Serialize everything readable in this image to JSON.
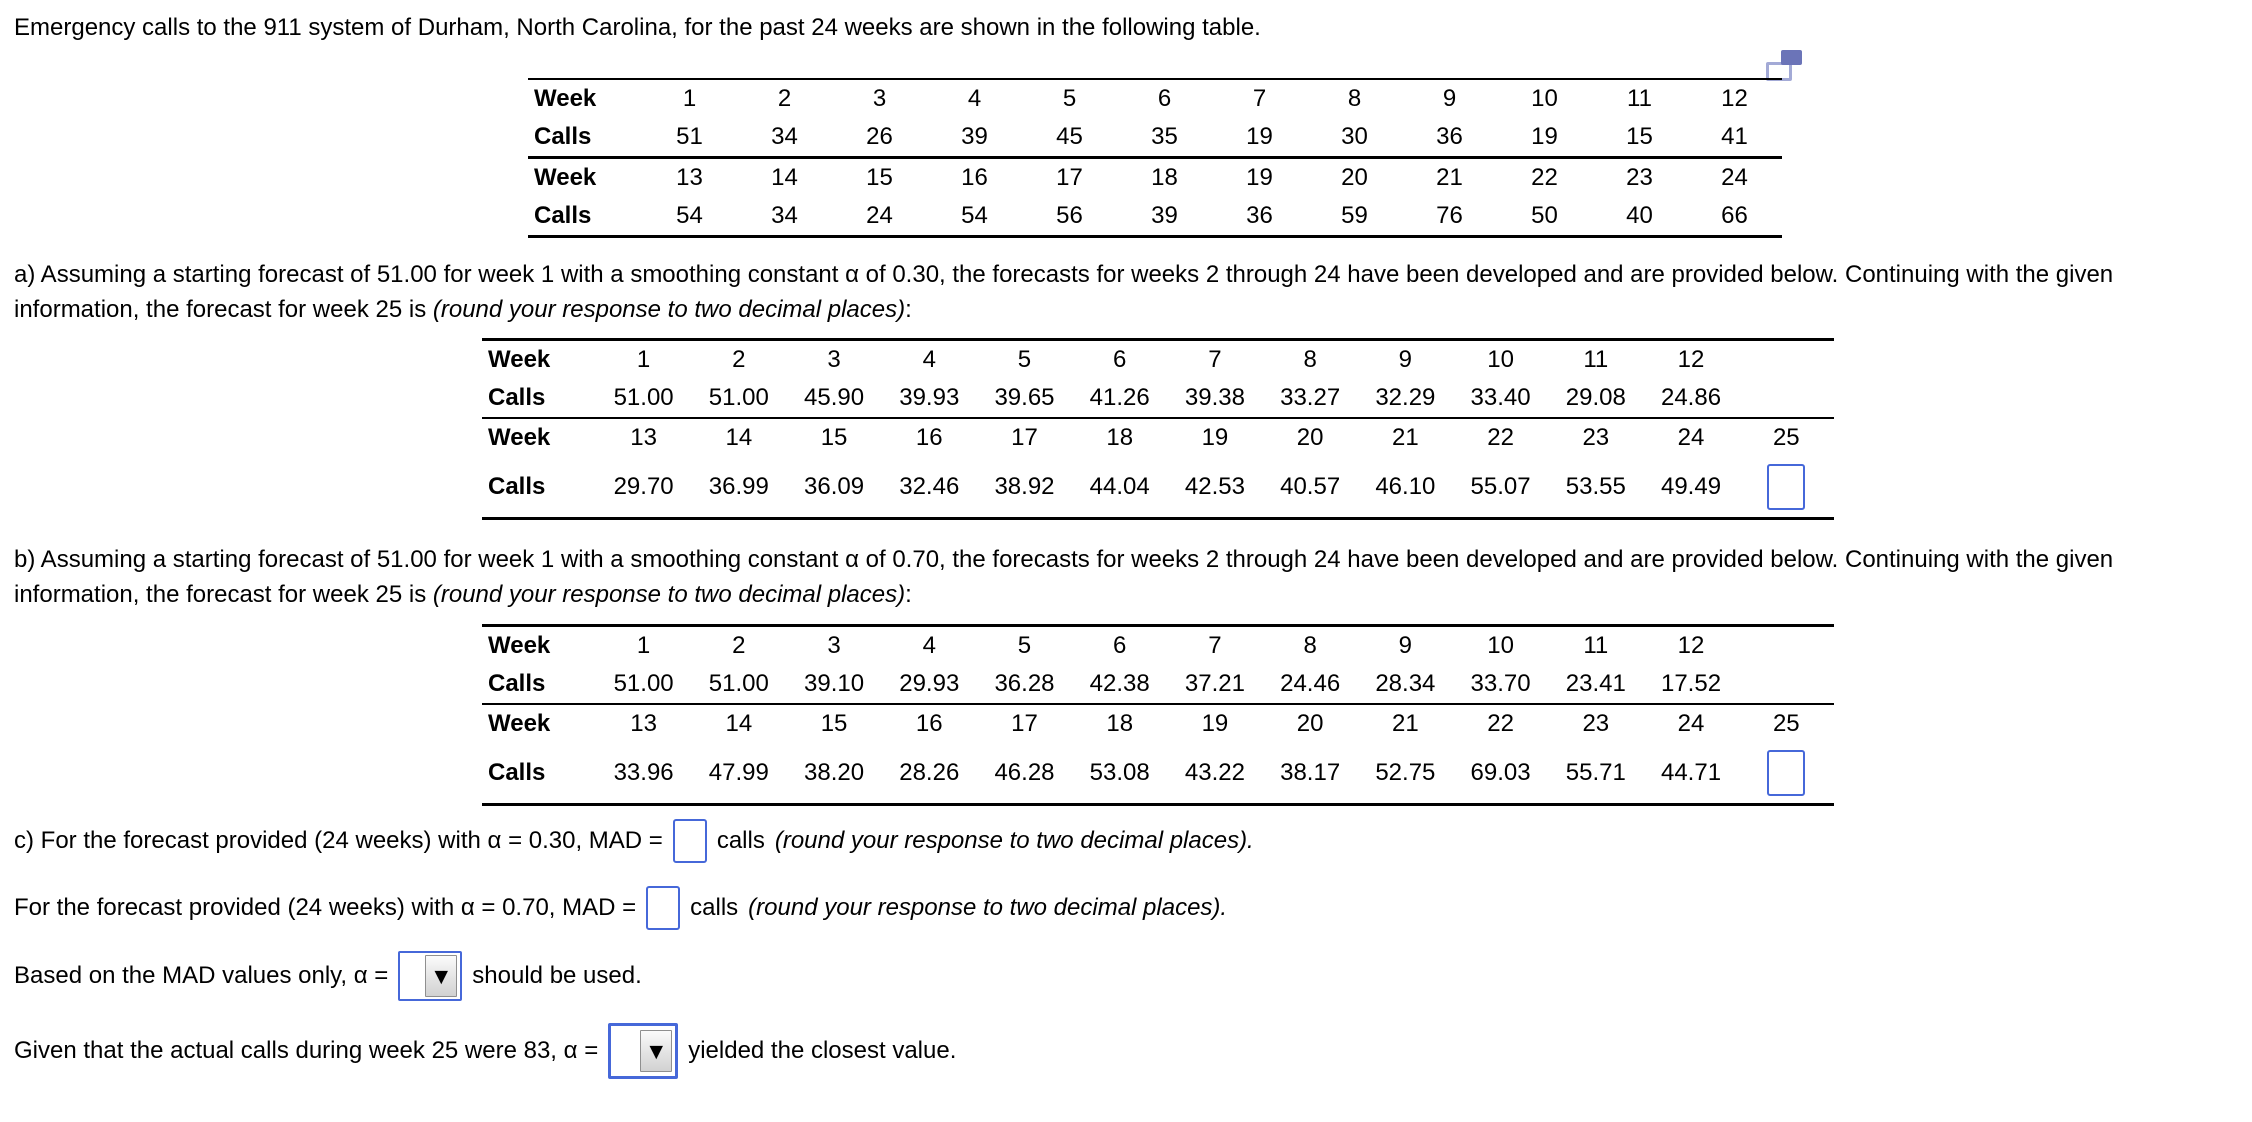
{
  "colors": {
    "input_border": "#4668d9",
    "icon_fill": "#6b74b8",
    "icon_outline": "#a3aad6",
    "table_line": "#000000"
  },
  "title": "Emergency calls to the 911 system of Durham, North Carolina, for the past 24 weeks are shown in the following table.",
  "copy_icon": "copy-table-icon",
  "calls_table": {
    "rows": [
      {
        "label": "Week",
        "values": [
          "1",
          "2",
          "3",
          "4",
          "5",
          "6",
          "7",
          "8",
          "9",
          "10",
          "11",
          "12"
        ]
      },
      {
        "label": "Calls",
        "values": [
          "51",
          "34",
          "26",
          "39",
          "45",
          "35",
          "19",
          "30",
          "36",
          "19",
          "15",
          "41"
        ]
      },
      {
        "label": "Week",
        "values": [
          "13",
          "14",
          "15",
          "16",
          "17",
          "18",
          "19",
          "20",
          "21",
          "22",
          "23",
          "24"
        ]
      },
      {
        "label": "Calls",
        "values": [
          "54",
          "34",
          "24",
          "54",
          "56",
          "39",
          "36",
          "59",
          "76",
          "50",
          "40",
          "66"
        ]
      }
    ]
  },
  "part_a": {
    "text": "a) Assuming a starting forecast of 51.00 for week 1 with a smoothing constant α of 0.30, the forecasts for weeks 2 through 24 have been developed and are provided below. Continuing with the given information, the forecast for week 25 is ",
    "italic_text": "(round your response to two decimal places)",
    "suffix": ":",
    "forecast_table": {
      "rows": [
        {
          "label": "Week",
          "values": [
            "1",
            "2",
            "3",
            "4",
            "5",
            "6",
            "7",
            "8",
            "9",
            "10",
            "11",
            "12",
            ""
          ]
        },
        {
          "label": "Calls",
          "values": [
            "51.00",
            "51.00",
            "45.90",
            "39.93",
            "39.65",
            "41.26",
            "39.38",
            "33.27",
            "32.29",
            "33.40",
            "29.08",
            "24.86",
            ""
          ]
        },
        {
          "label": "Week",
          "values": [
            "13",
            "14",
            "15",
            "16",
            "17",
            "18",
            "19",
            "20",
            "21",
            "22",
            "23",
            "24",
            "25"
          ]
        },
        {
          "label": "Calls",
          "values": [
            "29.70",
            "36.99",
            "36.09",
            "32.46",
            "38.92",
            "44.04",
            "42.53",
            "40.57",
            "46.10",
            "55.07",
            "53.55",
            "49.49",
            "__INPUT__"
          ]
        }
      ]
    }
  },
  "part_b": {
    "text": "b) Assuming a starting forecast of 51.00 for week 1 with a smoothing constant α of 0.70, the forecasts for weeks 2 through 24 have been developed and are provided below. Continuing with the given information, the forecast for week 25 is ",
    "italic_text": "(round your response to two decimal places)",
    "suffix": ":",
    "forecast_table": {
      "rows": [
        {
          "label": "Week",
          "values": [
            "1",
            "2",
            "3",
            "4",
            "5",
            "6",
            "7",
            "8",
            "9",
            "10",
            "11",
            "12",
            ""
          ]
        },
        {
          "label": "Calls",
          "values": [
            "51.00",
            "51.00",
            "39.10",
            "29.93",
            "36.28",
            "42.38",
            "37.21",
            "24.46",
            "28.34",
            "33.70",
            "23.41",
            "17.52",
            ""
          ]
        },
        {
          "label": "Week",
          "values": [
            "13",
            "14",
            "15",
            "16",
            "17",
            "18",
            "19",
            "20",
            "21",
            "22",
            "23",
            "24",
            "25"
          ]
        },
        {
          "label": "Calls",
          "values": [
            "33.96",
            "47.99",
            "38.20",
            "28.26",
            "46.28",
            "53.08",
            "43.22",
            "38.17",
            "52.75",
            "69.03",
            "55.71",
            "44.71",
            "__INPUT__"
          ]
        }
      ]
    }
  },
  "part_c": {
    "line1": {
      "text": "c) For the forecast provided (24 weeks) with α = 0.30, MAD =",
      "after_input": "calls",
      "italic_text": "(round your response to two decimal places)."
    },
    "line2": {
      "text": "For the forecast provided (24 weeks) with α = 0.70, MAD =",
      "after_input": "calls",
      "italic_text": "(round your response to two decimal places)."
    }
  },
  "part_d": {
    "text": "Based on the MAD values only, α =",
    "after_dropdown": "should be used.",
    "dropdown_icon": "▼"
  },
  "part_e": {
    "text": "Given that the actual calls during week 25 were 83, α =",
    "after_dropdown": "yielded the closest value.",
    "dropdown_icon": "▼"
  }
}
